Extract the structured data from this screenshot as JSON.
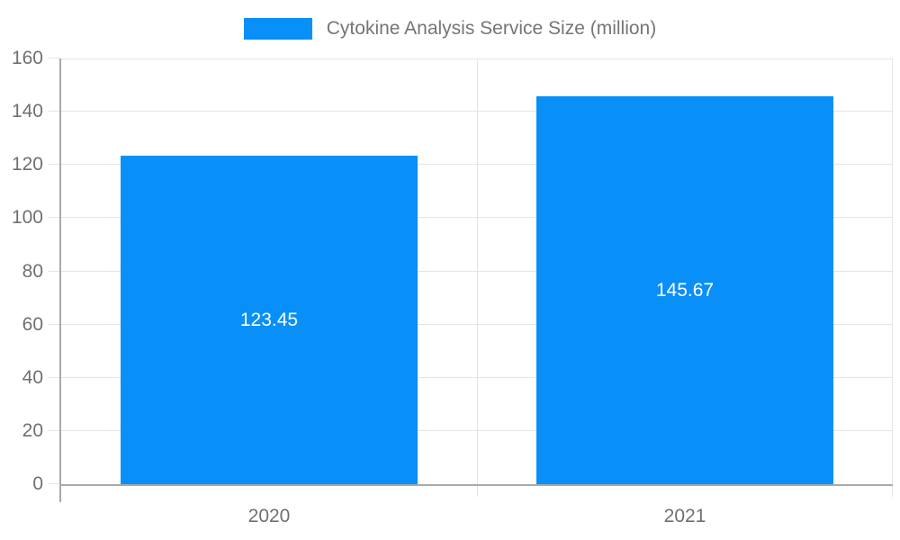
{
  "chart_data": {
    "type": "bar",
    "title": "Cytokine Analysis Service Size (million)",
    "series_name": "Cytokine Analysis Service Size (million)",
    "categories": [
      "2020",
      "2021"
    ],
    "values": [
      123.45,
      145.67
    ],
    "value_labels": [
      "123.45",
      "145.67"
    ],
    "xlabel": "",
    "ylabel": "",
    "ylim": [
      0,
      160
    ],
    "yticks": [
      0,
      20,
      40,
      60,
      80,
      100,
      120,
      140,
      160
    ],
    "grid": true,
    "legend_position": "top",
    "colors": {
      "bar": "#0890F8",
      "value_label": "#FFFFFF",
      "axis_text": "#707070",
      "legend_text": "#757575",
      "gridline": "#E4E4E4",
      "axis_line": "#A9A9A9",
      "background": "#FFFFFF"
    }
  }
}
